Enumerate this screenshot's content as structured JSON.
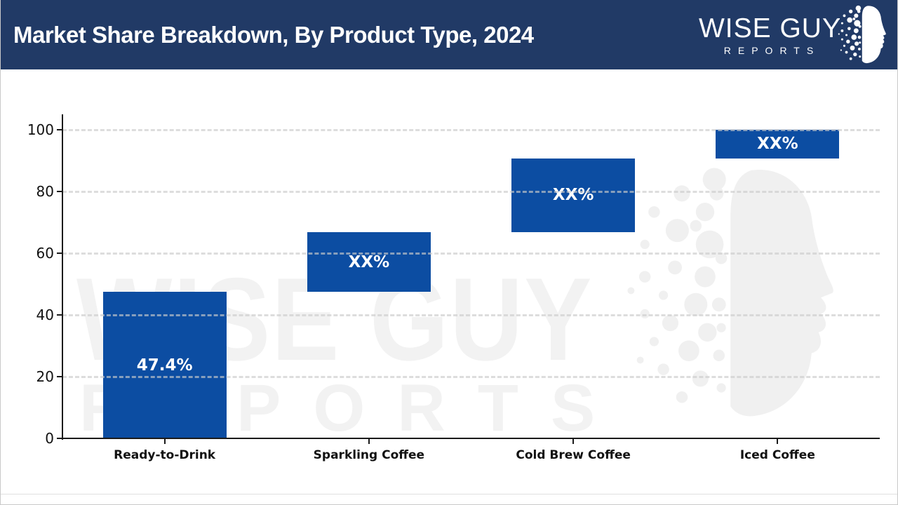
{
  "header": {
    "title": "Market Share Breakdown, By Product Type, 2024",
    "background_color": "#213a66",
    "logo": {
      "wordmark": "WISE GUY",
      "subtext": "REPORTS",
      "face_icon": "dotted-head-profile-icon"
    }
  },
  "watermark": {
    "wordmark": "WISE GUY",
    "subtext": "REPORTS",
    "face_icon": "dotted-head-profile-icon"
  },
  "chart_data": {
    "type": "bar",
    "subtype": "waterfall",
    "title": "Market Share Breakdown, By Product Type, 2024",
    "categories": [
      "Ready-to-Drink",
      "Sparkling Coffee",
      "Cold Brew Coffee",
      "Iced Coffee"
    ],
    "segments": [
      {
        "category": "Ready-to-Drink",
        "start": 0,
        "end": 47.4,
        "label": "47.4%"
      },
      {
        "category": "Sparkling Coffee",
        "start": 47.4,
        "end": 66.8,
        "label": "XX%"
      },
      {
        "category": "Cold Brew Coffee",
        "start": 66.8,
        "end": 90.7,
        "label": "XX%"
      },
      {
        "category": "Iced Coffee",
        "start": 90.7,
        "end": 100,
        "label": "XX%"
      }
    ],
    "yticks": [
      0,
      20,
      40,
      60,
      80,
      100
    ],
    "ylim": [
      0,
      105
    ],
    "xlabel": "",
    "ylabel": "",
    "bar_color": "#0c4da2",
    "label_color": "#ffffff",
    "grid": "horizontal-dashed",
    "gridline_color": "#cbcbcb",
    "legend": "none"
  }
}
